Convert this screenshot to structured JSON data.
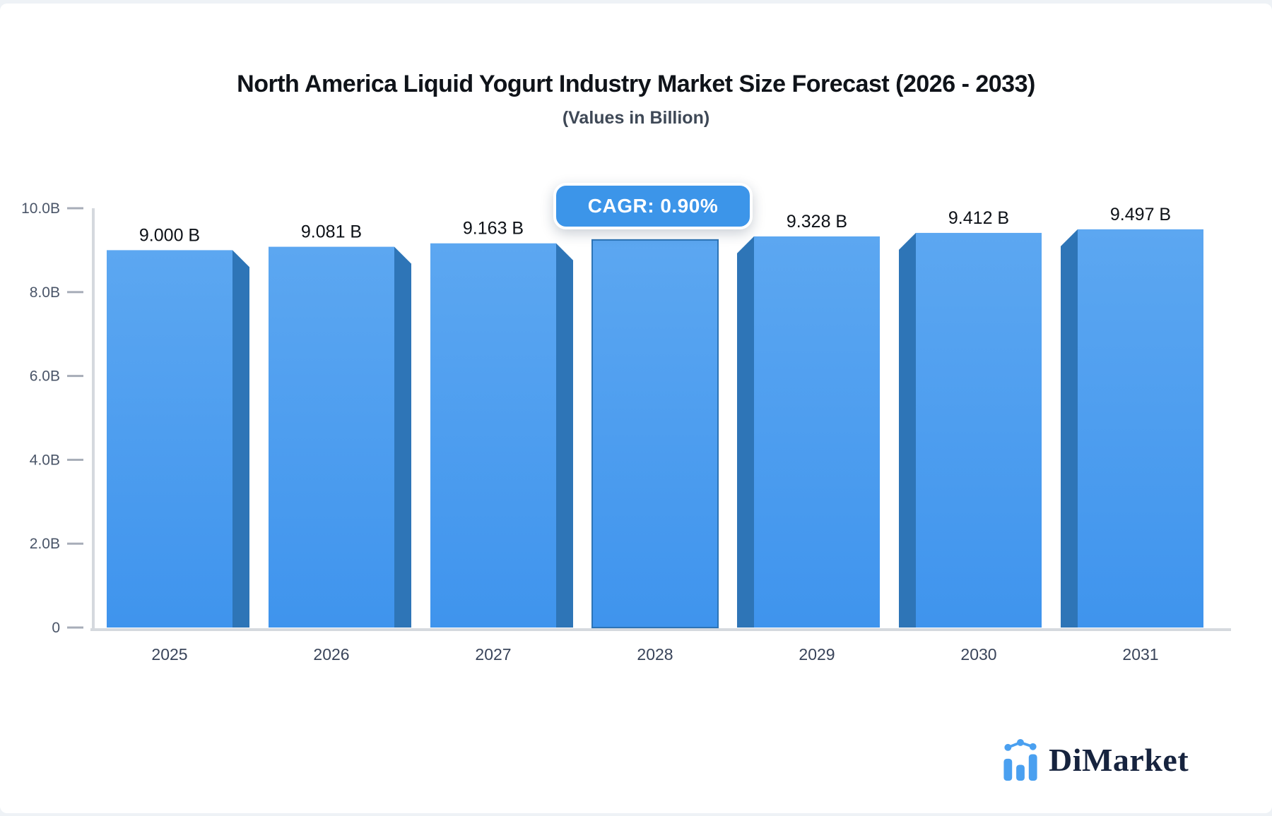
{
  "header": {
    "title": "North America Liquid Yogurt Industry Market Size Forecast (2026 - 2033)",
    "subtitle": "(Values in Billion)"
  },
  "badge": {
    "label": "CAGR: 0.90%"
  },
  "footer": {
    "brand": "DiMarket"
  },
  "chart_data": {
    "type": "bar",
    "title": "North America Liquid Yogurt Industry Market Size Forecast (2026 - 2033)",
    "subtitle": "(Values in Billion)",
    "categories": [
      "2025",
      "2026",
      "2027",
      "2028",
      "2029",
      "2030",
      "2031"
    ],
    "values": [
      9.0,
      9.081,
      9.163,
      9.245,
      9.328,
      9.412,
      9.497
    ],
    "value_labels": [
      "9.000 B",
      "9.081 B",
      "9.163 B",
      "",
      "9.328 B",
      "9.412 B",
      "9.497 B"
    ],
    "annotation": "CAGR: 0.90%",
    "ylim": [
      0,
      10
    ],
    "y_ticks": [
      {
        "label": "0",
        "value": 0
      },
      {
        "label": "2.0B",
        "value": 2
      },
      {
        "label": "4.0B",
        "value": 4
      },
      {
        "label": "6.0B",
        "value": 6
      },
      {
        "label": "8.0B",
        "value": 8
      },
      {
        "label": "10.0B",
        "value": 10
      }
    ],
    "grid": false,
    "legend": "none",
    "bar_3d_lean": [
      "right",
      "right",
      "right",
      "front",
      "left",
      "left",
      "left"
    ],
    "colors": {
      "bar_face_top": "#5CA7F1",
      "bar_face_bottom": "#3F94ED",
      "bar_side": "#2E75B7",
      "bar_front_border": "#2D74B6",
      "badge_bg": "#3C95E9",
      "badge_text": "#FFFFFF",
      "axis_line": "#D5D9DE",
      "tick_dash": "#A7ADB8",
      "y_label": "#4A5568",
      "x_label": "#39445A",
      "value_label": "#0D1117",
      "brand_navy": "#16233E",
      "brand_blue": "#4AA0F0"
    }
  }
}
